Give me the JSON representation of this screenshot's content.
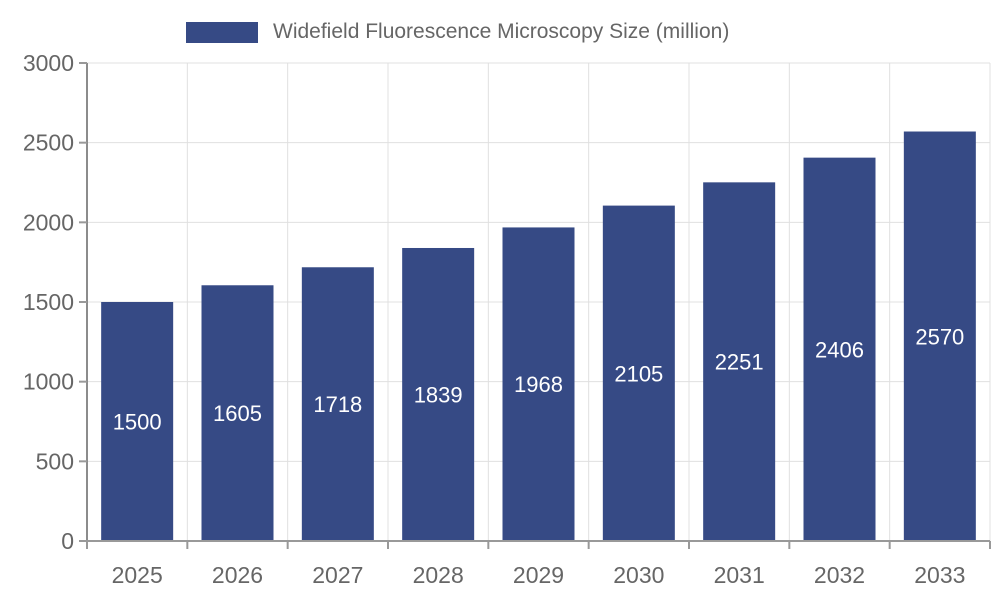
{
  "legend": {
    "label": "Widefield Fluorescence Microscopy Size (million)"
  },
  "chart_data": {
    "type": "bar",
    "title": "Widefield Fluorescence Microscopy Size (million)",
    "categories": [
      "2025",
      "2026",
      "2027",
      "2028",
      "2029",
      "2030",
      "2031",
      "2032",
      "2033"
    ],
    "values": [
      1500,
      1605,
      1718,
      1839,
      1968,
      2105,
      2251,
      2406,
      2570
    ],
    "xlabel": "",
    "ylabel": "",
    "ylim": [
      0,
      3000
    ],
    "yticks": [
      0,
      500,
      1000,
      1500,
      2000,
      2500,
      3000
    ],
    "grid": true,
    "legend_position": "top",
    "colors": {
      "bar": "#364a85",
      "value_label": "#ffffff",
      "axis_label": "#666666",
      "legend_text": "#666666",
      "gridline": "#e0e0e0",
      "axis_line": "#999999",
      "y_axis_line": "#8c8c8c"
    }
  }
}
